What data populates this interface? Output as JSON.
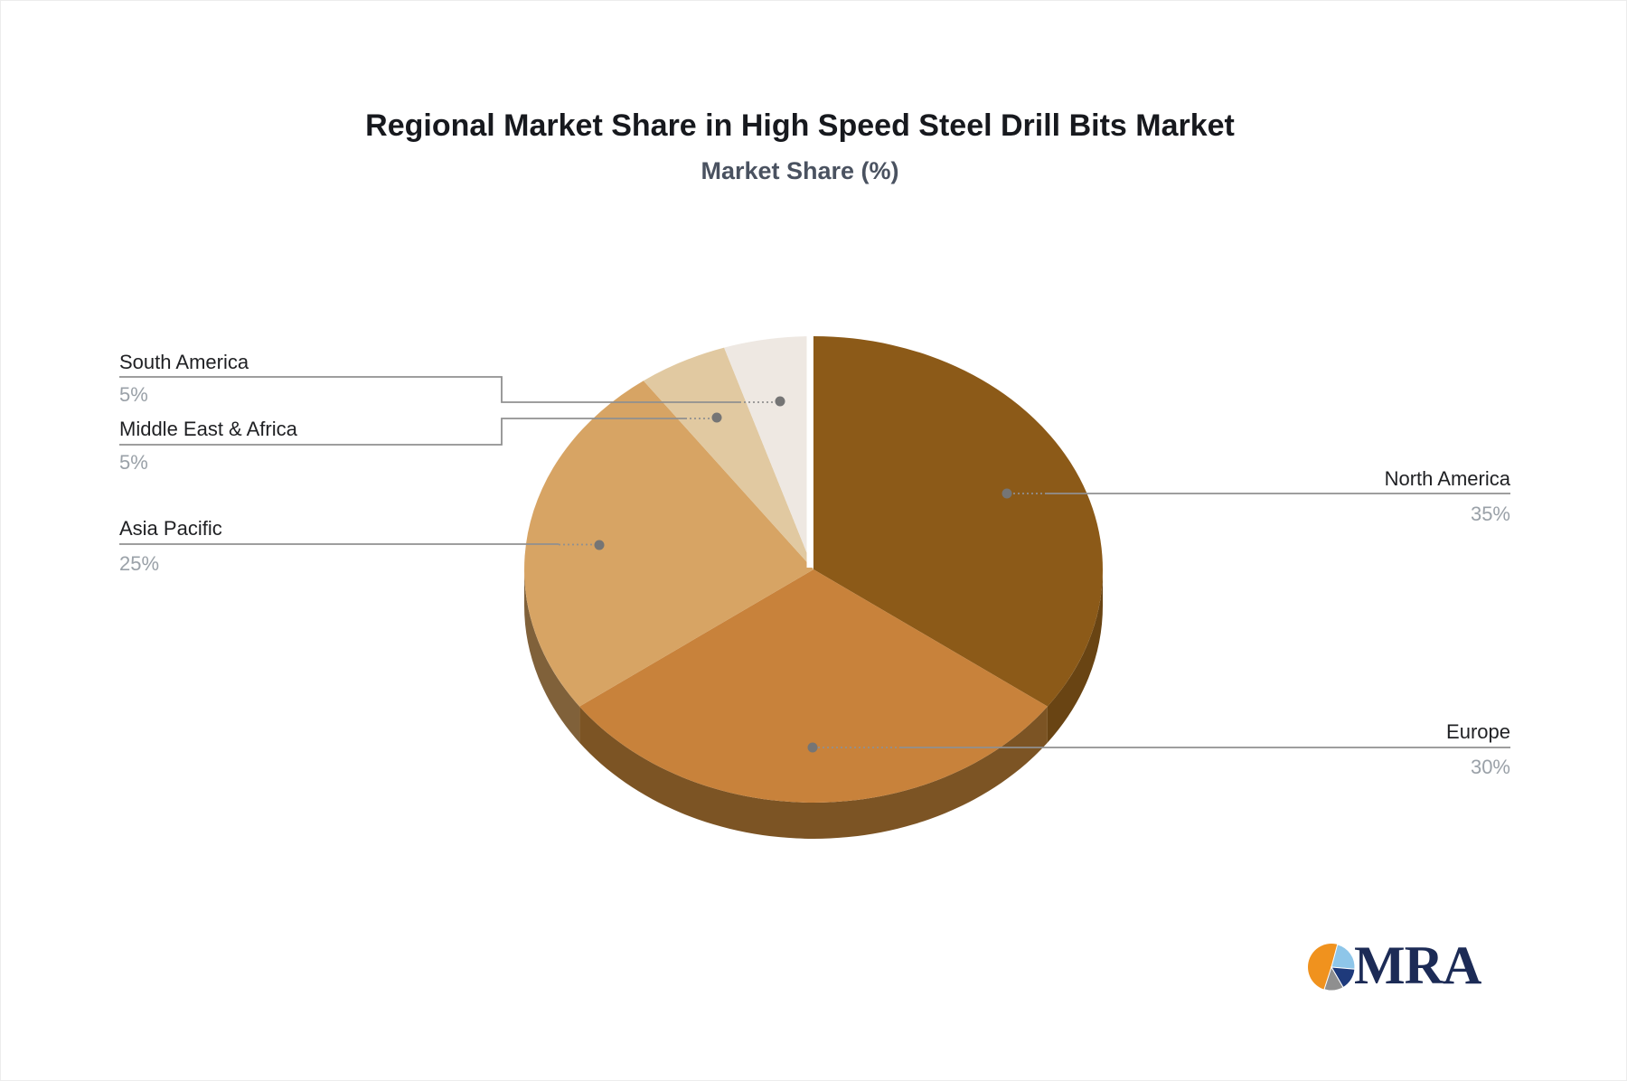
{
  "chart_data": {
    "type": "pie",
    "title": "Regional Market Share in High Speed Steel Drill Bits Market",
    "subtitle": "Market Share (%)",
    "unit": "%",
    "style_3d": true,
    "start_angle_deg": 0,
    "direction": "clockwise",
    "legend_position": "none",
    "label_style": "outside-leader-lines",
    "slices": [
      {
        "label": "North America",
        "value": 35,
        "pct_text": "35%",
        "color": "#8C5A18",
        "side_color": "#694413"
      },
      {
        "label": "Europe",
        "value": 30,
        "pct_text": "30%",
        "color": "#C8823B",
        "side_color": "#7C5424"
      },
      {
        "label": "Asia Pacific",
        "value": 25,
        "pct_text": "25%",
        "color": "#D7A464",
        "side_color": "#80613A"
      },
      {
        "label": "Middle East & Africa",
        "value": 5,
        "pct_text": "5%",
        "color": "#E1C9A1",
        "side_color": "#A58C66"
      },
      {
        "label": "South America",
        "value": 5,
        "pct_text": "5%",
        "color": "#EEE8E2",
        "side_color": "#C2B7AB"
      }
    ]
  },
  "style": {
    "leader_line_color": "#909090",
    "anchor_dot_color": "#757575",
    "label_text_color": "#1F2023",
    "percent_text_color": "#9AA1A8",
    "title_color": "#17191E",
    "subtitle_color": "#4A5260"
  },
  "logo": {
    "text": "MRA",
    "colors": {
      "orange": "#F0921E",
      "light_blue": "#8EC6E9",
      "navy": "#1E3A7B",
      "gray": "#8F8F8F",
      "text_navy": "#1C2B56"
    }
  }
}
